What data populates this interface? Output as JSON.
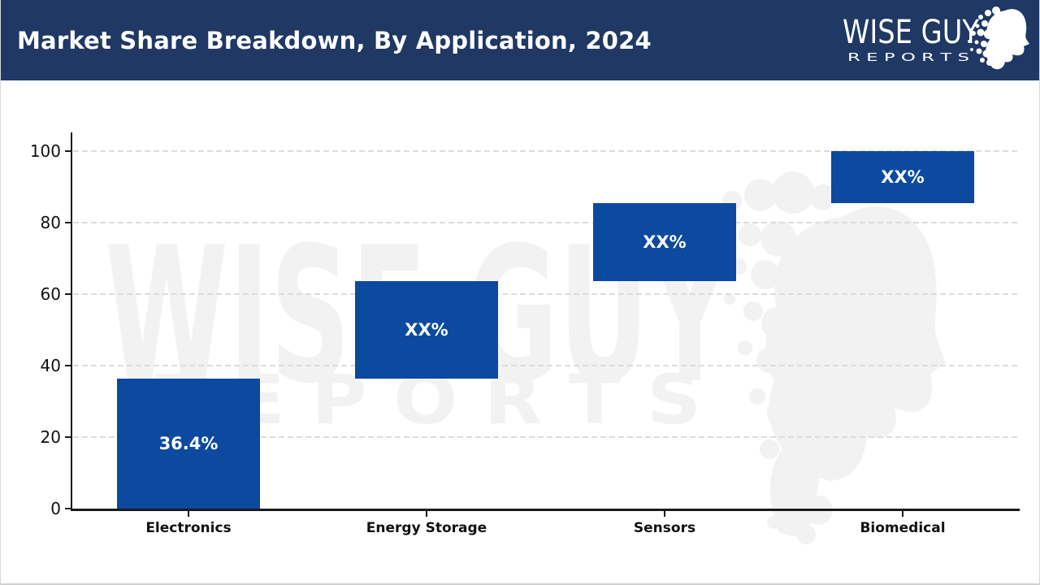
{
  "header": {
    "title": "Market Share Breakdown, By Application, 2024",
    "bg_color": "#1f3864",
    "logo": {
      "line1": "WISE GUY",
      "line2": "R E P O R T S"
    }
  },
  "watermark": {
    "line1": "WISE GUY",
    "line2": "R E P O R T S"
  },
  "chart_data": {
    "type": "bar",
    "subtype": "waterfall",
    "title": "Market Share Breakdown, By Application, 2024",
    "categories": [
      "Electronics",
      "Energy Storage",
      "Sensors",
      "Biomedical"
    ],
    "series": [
      {
        "name": "Market Share",
        "starts": [
          0,
          36.4,
          63.7,
          85.5
        ],
        "ends": [
          36.4,
          63.7,
          85.5,
          100
        ],
        "labels": [
          "36.4%",
          "XX%",
          "XX%",
          "XX%"
        ]
      }
    ],
    "xlabel": "",
    "ylabel": "",
    "ylim": [
      0,
      100
    ],
    "yticks": [
      0,
      20,
      40,
      60,
      80,
      100
    ],
    "yticklabels": [
      "0",
      "20",
      "40",
      "60",
      "80",
      "100"
    ],
    "grid": "horizontal-dashed",
    "legend": "none",
    "bar_color": "#0b4a9e",
    "bar_label_color": "#ffffff",
    "grid_color": "#dcdcdc",
    "axis_color": "#1a1a1a"
  }
}
